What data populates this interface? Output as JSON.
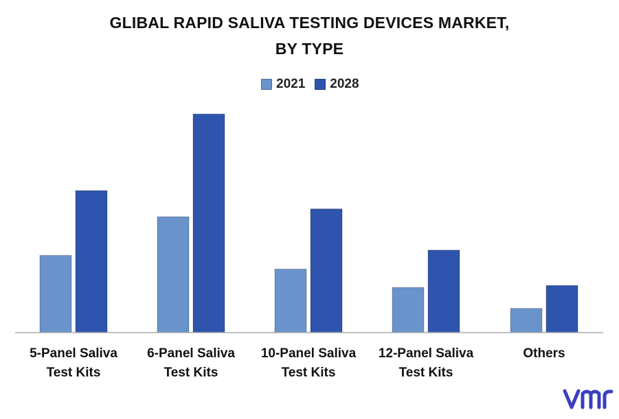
{
  "title_line1": "GLIBAL RAPID SALIVA TESTING DEVICES MARKET,",
  "title_line2": "BY TYPE",
  "colors": {
    "series_2021": "#6a93cb",
    "series_2028": "#2e54ad",
    "axis": "#aaaaaa",
    "logo": "#3a3fbf"
  },
  "logo": {
    "icon": "vmr-logo-icon",
    "text": "vmr"
  },
  "chart_data": {
    "type": "bar",
    "categories": [
      [
        "5-Panel Saliva",
        "Test Kits"
      ],
      [
        "6-Panel Saliva",
        "Test Kits"
      ],
      [
        "10-Panel Saliva",
        "Test Kits"
      ],
      [
        "12-Panel Saliva",
        "Test Kits"
      ],
      [
        "Others"
      ]
    ],
    "series": [
      {
        "name": "2021",
        "values": [
          118,
          177,
          97,
          69,
          37
        ]
      },
      {
        "name": "2028",
        "values": [
          217,
          334,
          189,
          126,
          72
        ]
      }
    ],
    "ylim": [
      0,
      350
    ],
    "legend": "top-center",
    "grid": false
  }
}
